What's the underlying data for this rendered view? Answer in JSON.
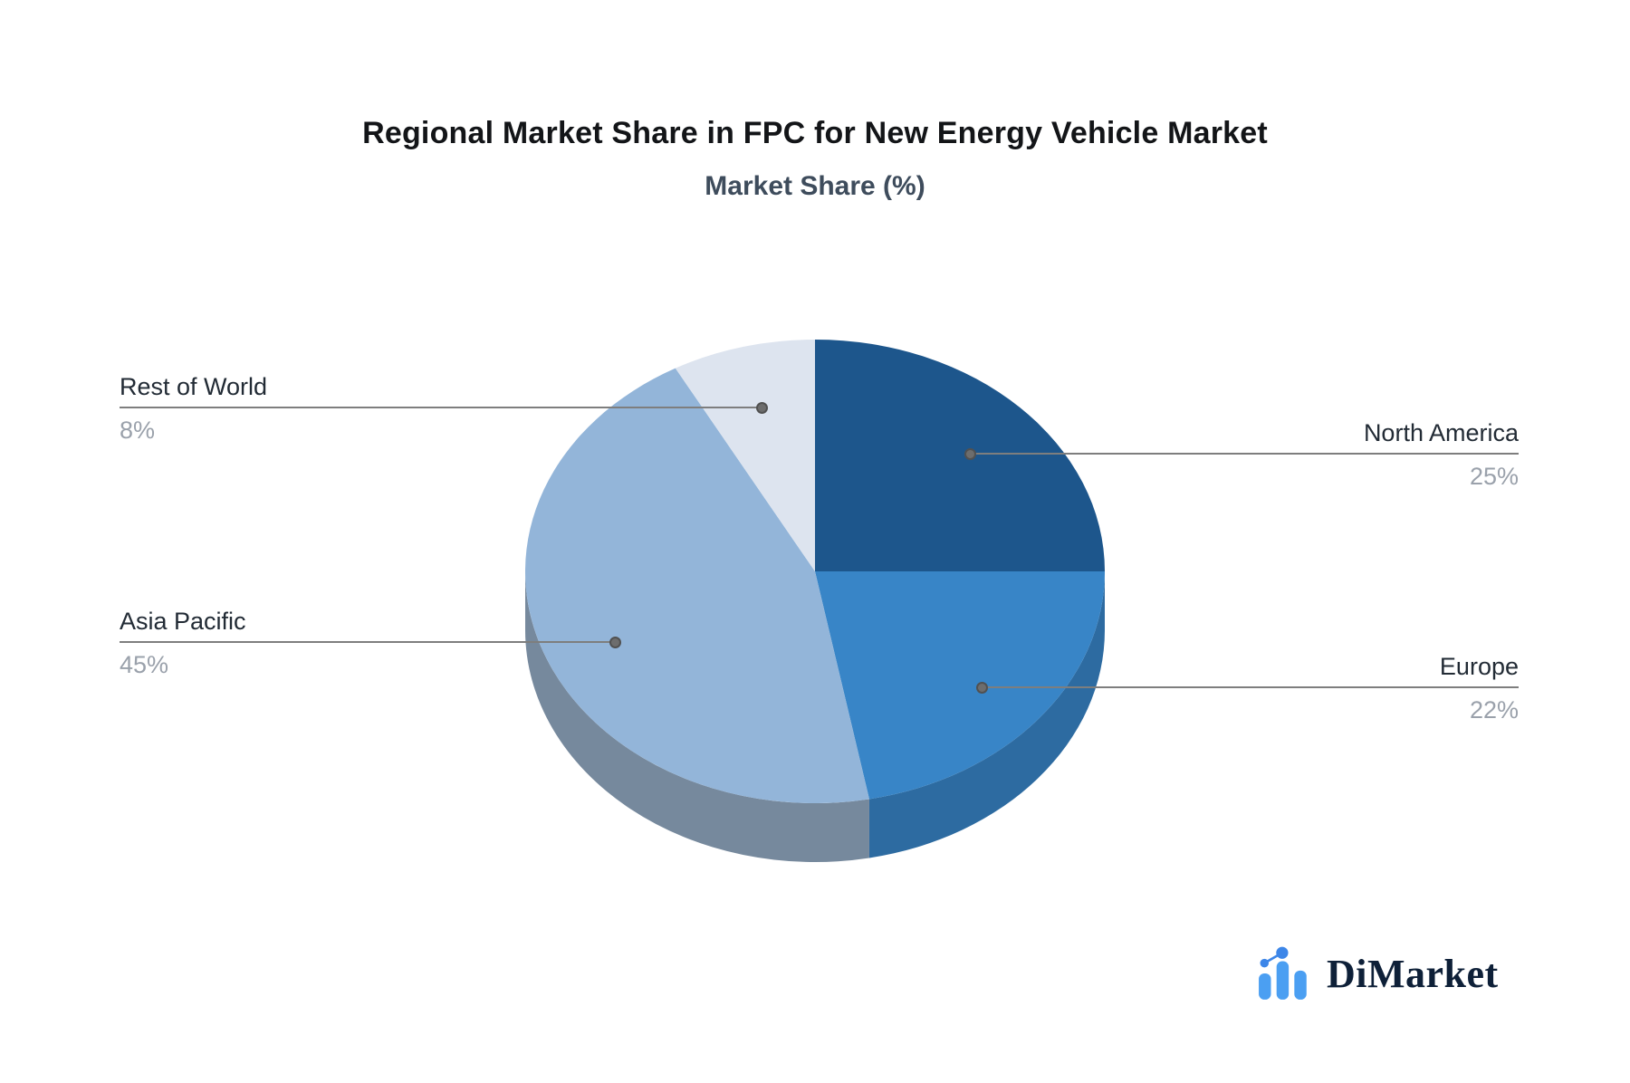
{
  "title": "Regional Market Share in FPC for New Energy Vehicle Market",
  "subtitle": "Market Share (%)",
  "chart_data": {
    "type": "pie",
    "title": "Regional Market Share in FPC for New Energy Vehicle Market",
    "subtitle": "Market Share (%)",
    "unit": "%",
    "categories": [
      "North America",
      "Europe",
      "Asia Pacific",
      "Rest of World"
    ],
    "values": [
      25,
      22,
      45,
      8
    ],
    "colors": [
      "#1d568c",
      "#3885c7",
      "#93b5d9",
      "#dde4ef"
    ],
    "side_colors": [
      "#16446e",
      "#2d6ba1",
      "#76899d",
      "#c3cddb"
    ],
    "start_angle": "12-o-clock",
    "direction": "clockwise",
    "effect_3d": true,
    "legend_position": "none",
    "labels_shown_as": "callout-lines"
  },
  "callouts": [
    {
      "label": "North America",
      "value": "25%",
      "side": "right"
    },
    {
      "label": "Europe",
      "value": "22%",
      "side": "right"
    },
    {
      "label": "Asia Pacific",
      "value": "45%",
      "side": "left"
    },
    {
      "label": "Rest of World",
      "value": "8%",
      "side": "left"
    }
  ],
  "logo": {
    "text": "DiMarket",
    "icon": "bar-chart-trend-icon",
    "icon_bar_color": "#4b9ff2",
    "icon_dot_color": "#3d86e8",
    "text_color": "#0e2038"
  }
}
